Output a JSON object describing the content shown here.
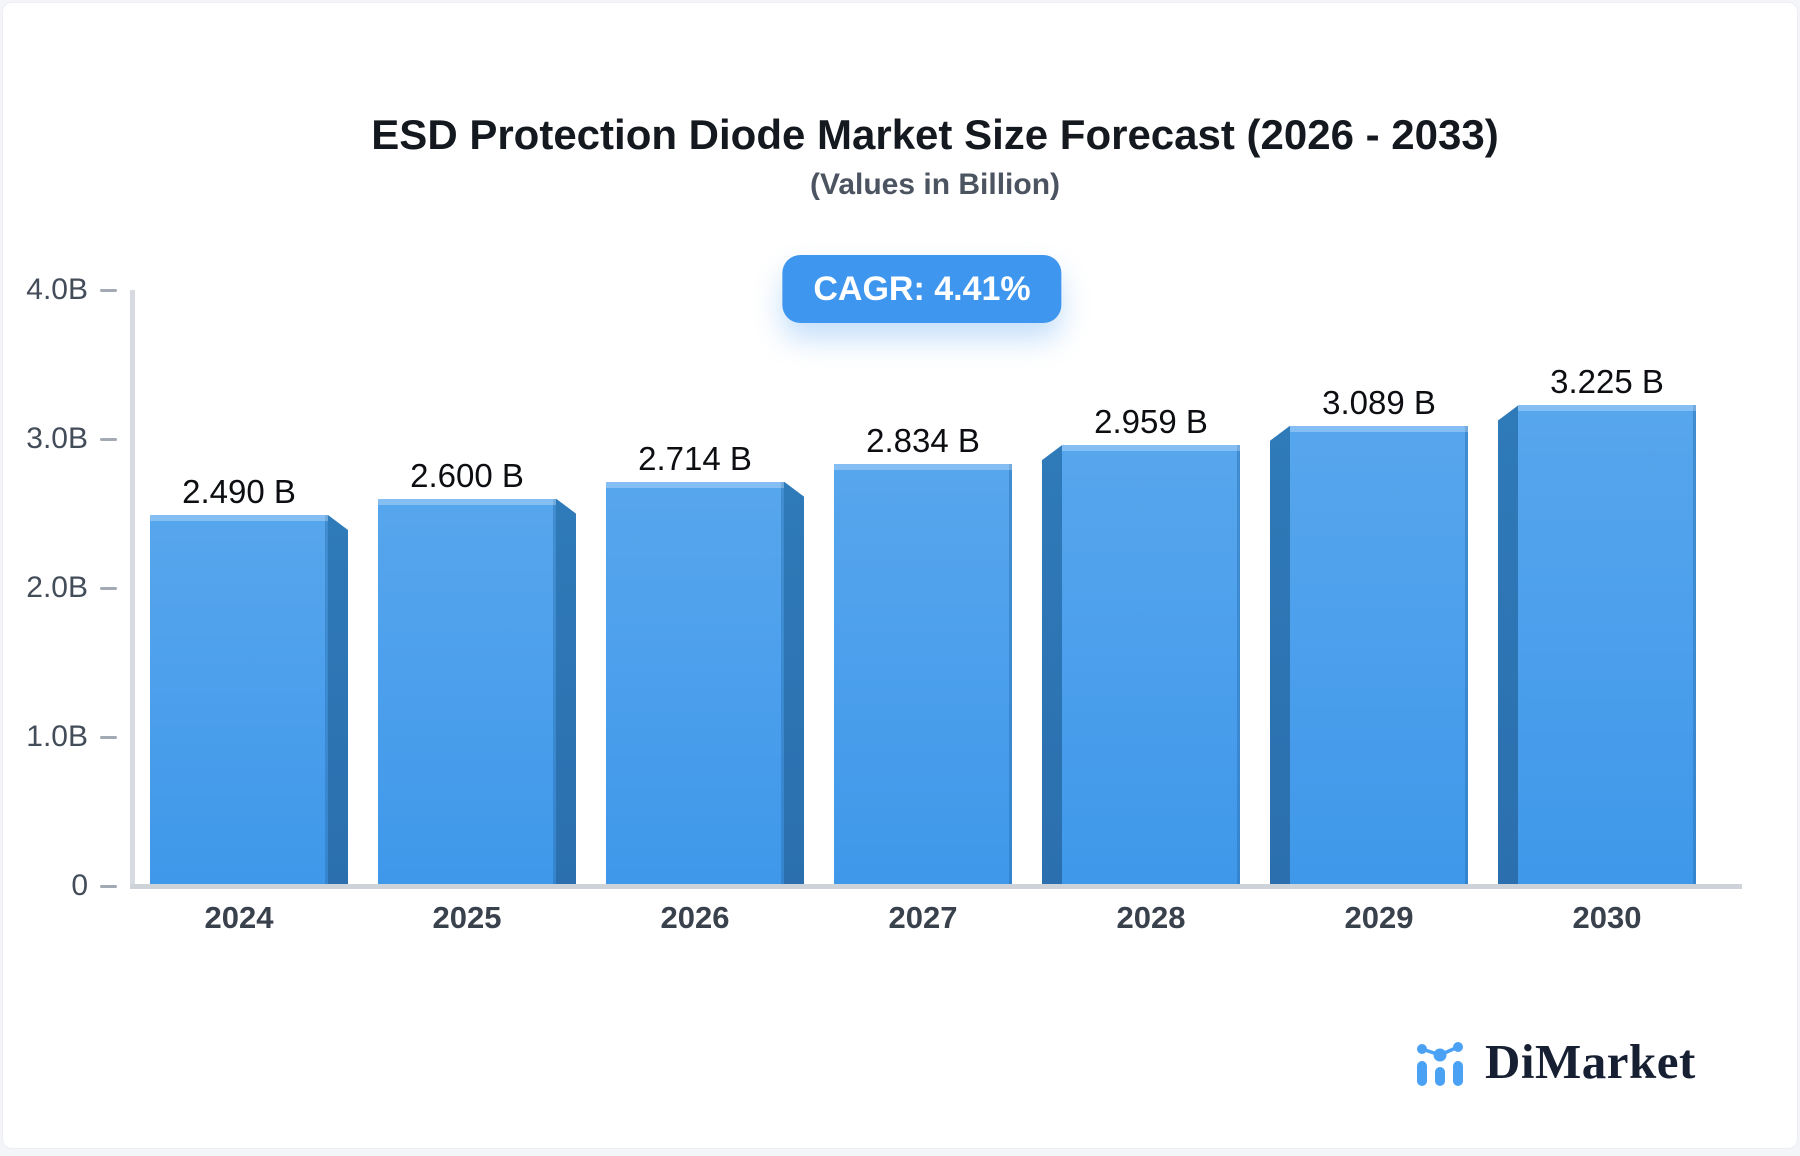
{
  "page": {
    "background": "#f4f5f8",
    "card_background": "#ffffff"
  },
  "header": {
    "title": "ESD Protection Diode Market Size Forecast (2026 - 2033)",
    "subtitle": "(Values in Billion)",
    "cagr_badge_label": "CAGR: 4.41%",
    "cagr_badge_color": "#3e96ee"
  },
  "chart_data": {
    "type": "bar",
    "categories": [
      "2024",
      "2025",
      "2026",
      "2027",
      "2028",
      "2029",
      "2030"
    ],
    "values": [
      2.49,
      2.6,
      2.714,
      2.834,
      2.959,
      3.089,
      3.225
    ],
    "value_labels": [
      "2.490 B",
      "2.600 B",
      "2.714 B",
      "2.834 B",
      "2.959 B",
      "3.089 B",
      "3.225 B"
    ],
    "title": "ESD Protection Diode Market Size Forecast (2026 - 2033)",
    "subtitle": "(Values in Billion)",
    "annotation": "CAGR: 4.41%",
    "xlabel": "",
    "ylabel": "",
    "ylim": [
      0,
      4.0
    ],
    "yticks": [
      {
        "value": 4.0,
        "label": "4.0B"
      },
      {
        "value": 3.0,
        "label": "3.0B"
      },
      {
        "value": 2.0,
        "label": "2.0B"
      },
      {
        "value": 1.0,
        "label": "1.0B"
      },
      {
        "value": 0,
        "label": "0"
      }
    ],
    "grid": false,
    "legend": false,
    "style": "3d-extruded-bars",
    "bar_color_top": "#57a6ed",
    "bar_color_bottom": "#3f98ea",
    "bar_side_color": "#2e76b5",
    "axis_color": "#d7dae0",
    "tick_label_color": "#434c59",
    "category_label_color": "#39414d",
    "value_label_color": "#0c0e12"
  },
  "footer": {
    "logo_text": "DiMarket",
    "logo_icon": "bar-line-chart-icon",
    "logo_text_color": "#172033",
    "logo_icon_color": "#4ba1f4"
  }
}
